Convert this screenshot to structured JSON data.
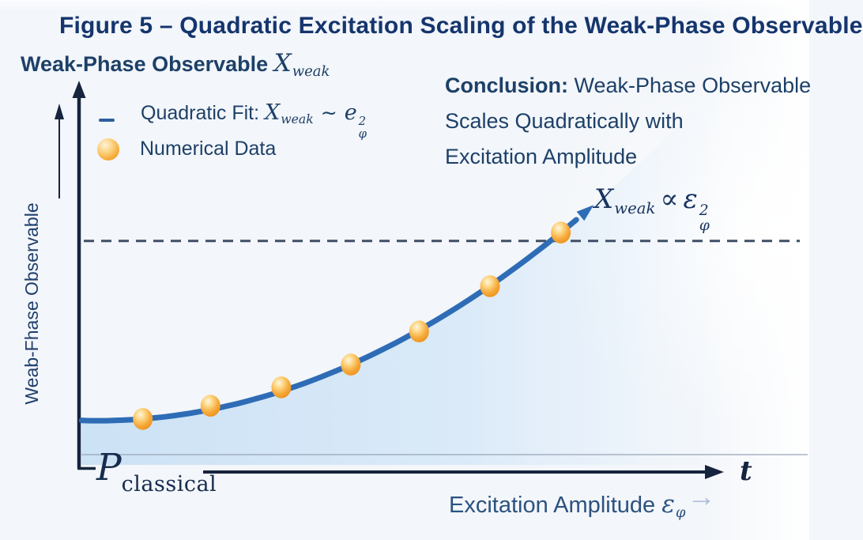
{
  "figure": {
    "title": "Figure 5 – Quadratic Excitation Scaling of the Weak-Phase Observable",
    "heading": {
      "text": "Weak-Phase Observable ",
      "var": "X",
      "var_sub": "weak"
    },
    "legend": {
      "fit": {
        "label": "Quadratic Fit: ",
        "var": "X",
        "var_sub": "weak",
        "relation": "∼",
        "e_var": "e",
        "e_sup": "2",
        "e_sub": "φ"
      },
      "numerical": {
        "label": "Numerical Data"
      }
    },
    "conclusion": {
      "label": "Conclusion:",
      "line1_rest": " Weak-Phase Observable",
      "line2": "Scales Quadratically with",
      "line3": "Excitation Amplitude"
    },
    "annotation": {
      "var": "X",
      "var_sub": "weak",
      "relation": "∝",
      "eps": "ε",
      "eps_sup": "2",
      "eps_sub": "φ"
    },
    "y_axis_rotated_label": "Weab-Fhase Observable",
    "x_axis_label": {
      "text": "Excitation Amplitude ",
      "eps": "ε",
      "eps_sub": "φ",
      "arrow": "→"
    },
    "origin_label": {
      "var": "P",
      "sub": "classical"
    },
    "t_label": "t"
  },
  "colors": {
    "title_text": "#15356d",
    "body_text": "#1d4068",
    "xlabel_text": "#2b527f",
    "axis": "#16243e",
    "curve": "#2e6cb6",
    "legend_dash": "#2e5f9e",
    "dashed_line": "#3f4e66",
    "thin_baseline": "#97a5b6",
    "area_fill": "#cfe3f6",
    "point_core": "#f4a52e",
    "point_highlight": "#fff3d8",
    "point_edge": "#e68c12",
    "light_arrow": "#a9bdd8",
    "background": "#f3f6fa"
  },
  "chart_data": {
    "type": "scatter",
    "title": "Figure 5 – Quadratic Excitation Scaling of the Weak-Phase Observable",
    "xlabel": "Excitation Amplitude ε_φ",
    "ylabel": "Weab-Fhase Observable",
    "axes_numeric_ticks": false,
    "legend_position": "top-left",
    "series": [
      {
        "name": "Quadratic Fit: X_weak ∼ e_φ²",
        "type": "line",
        "fit": "quadratic"
      },
      {
        "name": "Numerical Data",
        "type": "scatter",
        "marker": "orange-sphere"
      }
    ],
    "points_norm": [
      {
        "x": 0.099,
        "y": 0.097
      },
      {
        "x": 0.204,
        "y": 0.133
      },
      {
        "x": 0.314,
        "y": 0.183
      },
      {
        "x": 0.422,
        "y": 0.245
      },
      {
        "x": 0.528,
        "y": 0.335
      },
      {
        "x": 0.638,
        "y": 0.458
      },
      {
        "x": 0.748,
        "y": 0.604
      }
    ],
    "dashed_reference_y_norm": 0.581,
    "curve_start_x_norm": 0.004,
    "curve_end_x_norm": 0.772,
    "area_end_x_norm": 1.06,
    "origin_label": "P_classical",
    "x_axis_end_label": "t",
    "annotation": "X_weak ∝ ε_φ²",
    "conclusion_text": "Conclusion: Weak-Phase Observable Scales Quadratically with Excitation Amplitude"
  }
}
